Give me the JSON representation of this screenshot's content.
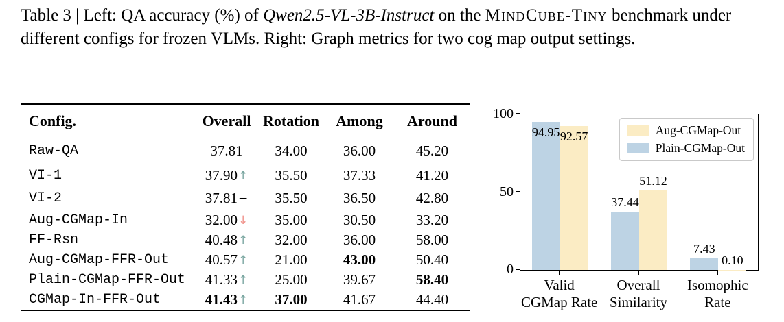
{
  "caption": {
    "part1": "Table 3 | Left: QA accuracy (%) of ",
    "model": "Qwen2.5-VL-3B-Instruct",
    "part2": " on the ",
    "benchmark": "MindCube-Tiny",
    "part3": " benchmark under different configs for frozen VLMs. Right: Graph metrics for two cog map output settings."
  },
  "colors": {
    "up_arrow": "#7ba7a1",
    "down_arrow": "#f0918a",
    "bar_plain": "#bdd3e4",
    "bar_aug": "#fbecc4",
    "gridline": "#dcdcdc"
  },
  "table": {
    "headers": [
      "Config.",
      "Overall",
      "Rotation",
      "Among",
      "Around"
    ],
    "markers": {
      "up": "↑",
      "down": "↓",
      "dash": "−"
    },
    "sections": [
      {
        "rows": [
          {
            "config": "Raw-QA",
            "cells": [
              {
                "text": "37.81"
              },
              {
                "text": "34.00"
              },
              {
                "text": "36.00"
              },
              {
                "text": "45.20"
              }
            ]
          }
        ]
      },
      {
        "rows": [
          {
            "config": "VI-1",
            "cells": [
              {
                "text": "37.90",
                "marker": "up"
              },
              {
                "text": "35.50"
              },
              {
                "text": "37.33"
              },
              {
                "text": "41.20"
              }
            ]
          },
          {
            "config": "VI-2",
            "cells": [
              {
                "text": "37.81",
                "marker": "dash"
              },
              {
                "text": "35.50"
              },
              {
                "text": "36.50"
              },
              {
                "text": "42.80"
              }
            ]
          }
        ]
      },
      {
        "rows": [
          {
            "config": "Aug-CGMap-In",
            "cells": [
              {
                "text": "32.00",
                "marker": "down"
              },
              {
                "text": "35.00"
              },
              {
                "text": "30.50"
              },
              {
                "text": "33.20"
              }
            ]
          },
          {
            "config": "FF-Rsn",
            "cells": [
              {
                "text": "40.48",
                "marker": "up"
              },
              {
                "text": "32.00"
              },
              {
                "text": "36.00"
              },
              {
                "text": "58.00"
              }
            ]
          },
          {
            "config": "Aug-CGMap-FFR-Out",
            "cells": [
              {
                "text": "40.57",
                "marker": "up"
              },
              {
                "text": "21.00"
              },
              {
                "text": "43.00",
                "bold": true
              },
              {
                "text": "50.40"
              }
            ]
          },
          {
            "config": "Plain-CGMap-FFR-Out",
            "cells": [
              {
                "text": "41.33",
                "marker": "up"
              },
              {
                "text": "25.00"
              },
              {
                "text": "39.67"
              },
              {
                "text": "58.40",
                "bold": true
              }
            ]
          },
          {
            "config": "CGMap-In-FFR-Out",
            "cells": [
              {
                "text": "41.43",
                "bold": true,
                "marker": "up"
              },
              {
                "text": "37.00",
                "bold": true
              },
              {
                "text": "41.67"
              },
              {
                "text": "44.40"
              }
            ]
          }
        ]
      }
    ]
  },
  "chart_data": {
    "type": "bar",
    "categories": [
      [
        "Valid",
        "CGMap Rate"
      ],
      [
        "Overall",
        "Similarity"
      ],
      [
        "Isomophic",
        "Rate"
      ]
    ],
    "series": [
      {
        "name": "Aug-CGMap-Out",
        "color": "#fbecc4",
        "slot": 1,
        "values": [
          92.57,
          51.12,
          0.1
        ]
      },
      {
        "name": "Plain-CGMap-Out",
        "color": "#bdd3e4",
        "slot": 0,
        "values": [
          94.95,
          37.44,
          7.43
        ]
      }
    ],
    "ylim": [
      0,
      100
    ],
    "yticks": [
      0,
      50,
      100
    ],
    "gridlines": [
      50
    ],
    "legend_position": "upper right",
    "grid": "horizontal-at-50",
    "title": "",
    "xlabel": "",
    "ylabel": ""
  }
}
